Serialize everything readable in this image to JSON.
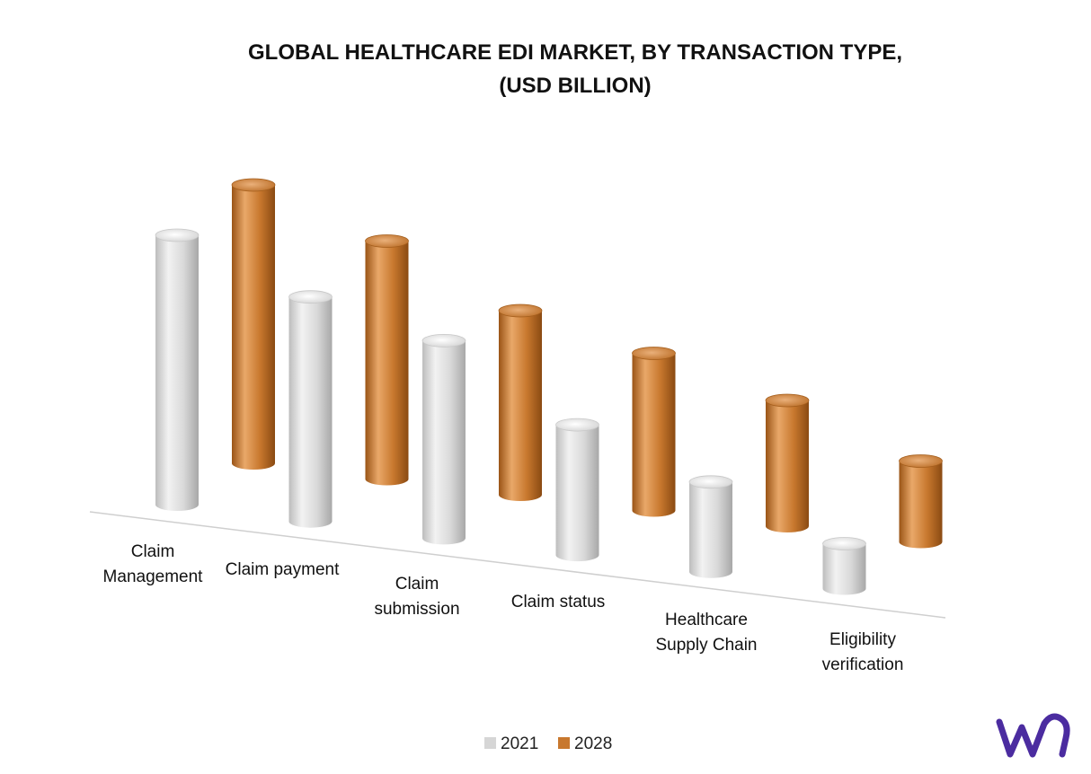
{
  "chart_data": {
    "type": "bar",
    "style": "3d-cylinder",
    "title_lines": [
      "GLOBAL HEALTHCARE EDI MARKET, BY TRANSACTION TYPE,",
      "(USD BILLION)"
    ],
    "categories": [
      [
        "Claim",
        "Management"
      ],
      [
        "Claim payment"
      ],
      [
        "Claim",
        "submission"
      ],
      [
        "Claim status"
      ],
      [
        "Healthcare",
        "Supply Chain"
      ],
      [
        "Eligibility",
        "verification"
      ]
    ],
    "series": [
      {
        "name": "2021",
        "color": "#d6d6d6",
        "values": [
          3.0,
          2.5,
          2.2,
          1.45,
          1.0,
          0.5
        ]
      },
      {
        "name": "2028",
        "color": "#c8782e",
        "values": [
          3.1,
          2.65,
          2.05,
          1.75,
          1.4,
          0.9
        ]
      }
    ],
    "legend_position": "bottom",
    "grid": false,
    "brand_logo": "vmr-logo"
  }
}
